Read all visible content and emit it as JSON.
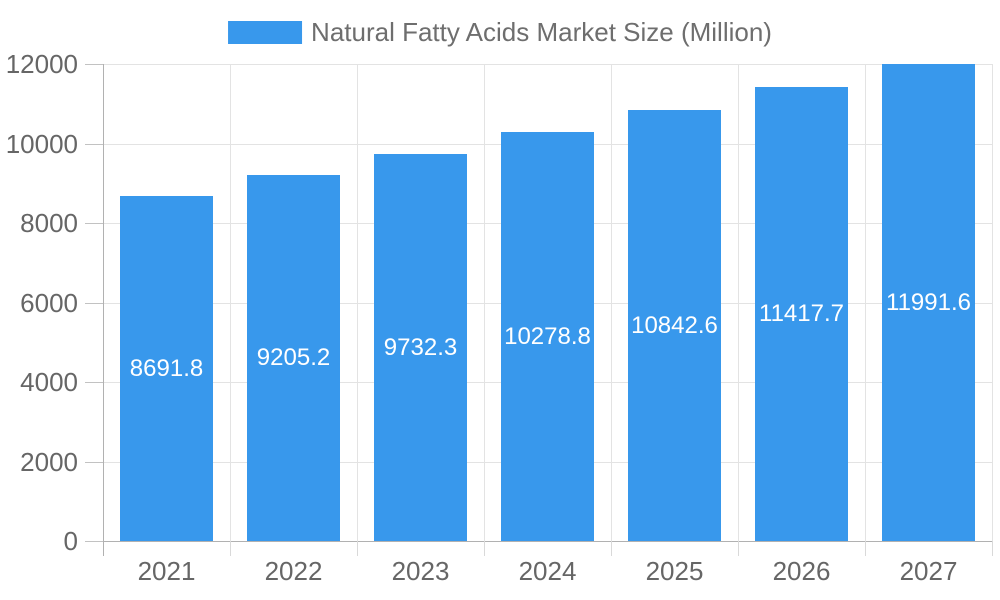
{
  "legend": {
    "position": "top",
    "items": [
      {
        "label": "Natural Fatty Acids Market Size (Million)",
        "color": "#3898EC"
      }
    ]
  },
  "chart_data": {
    "type": "bar",
    "title": "Natural Fatty Acids Market Size (Million)",
    "categories": [
      "2021",
      "2022",
      "2023",
      "2024",
      "2025",
      "2026",
      "2027"
    ],
    "series": [
      {
        "name": "Natural Fatty Acids Market Size (Million)",
        "color": "#3898EC",
        "values": [
          8691.8,
          9205.2,
          9732.3,
          10278.8,
          10842.6,
          11417.7,
          11991.6
        ]
      }
    ],
    "value_labels": [
      "8691.8",
      "9205.2",
      "9732.3",
      "10278.8",
      "10842.6",
      "11417.7",
      "11991.6"
    ],
    "value_label_position": "inside-center",
    "xlabel": "",
    "ylabel": "",
    "ylim": [
      0,
      12000
    ],
    "yticks": [
      0,
      2000,
      4000,
      6000,
      8000,
      10000,
      12000
    ],
    "grid": true,
    "legend_position": "top"
  },
  "colors": {
    "background": "#ffffff",
    "bar": "#3898EC",
    "axis_line": "#b1b1b1",
    "gridline": "#e3e3e3",
    "y_tick": "#c2c2c2",
    "x_boundary_tick": "#d9d9d9",
    "axis_text": "#666666",
    "legend_text": "#6e6e6e",
    "value_label_text": "#ffffff"
  }
}
